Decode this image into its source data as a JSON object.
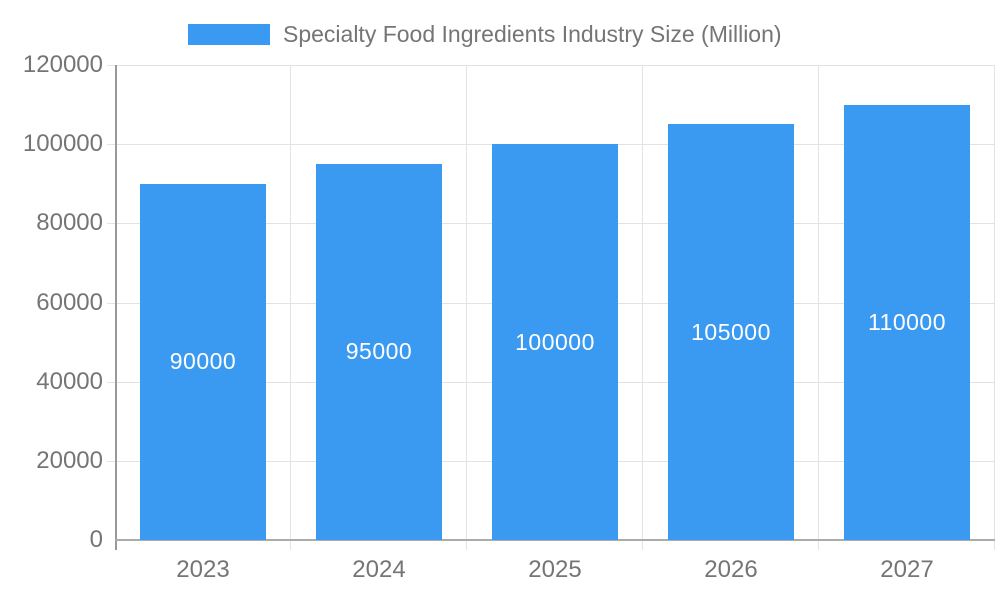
{
  "legend": {
    "label": "Specialty Food Ingredients Industry Size (Million)"
  },
  "chart_data": {
    "type": "bar",
    "title": "Specialty Food Ingredients Industry Size (Million)",
    "categories": [
      "2023",
      "2024",
      "2025",
      "2026",
      "2027"
    ],
    "values": [
      90000,
      95000,
      100000,
      105000,
      110000
    ],
    "bar_labels": [
      "90000",
      "95000",
      "100000",
      "105000",
      "110000"
    ],
    "xlabel": "",
    "ylabel": "",
    "ylim": [
      0,
      120000
    ],
    "yticks": [
      0,
      20000,
      40000,
      60000,
      80000,
      100000,
      120000
    ],
    "ytick_labels": [
      "0",
      "20000",
      "40000",
      "60000",
      "80000",
      "100000",
      "120000"
    ],
    "grid": true,
    "legend_position": "top",
    "colors": {
      "bar": "#3A99F0",
      "bar_label_text": "#ffffff",
      "axis_text": "#757575",
      "gridline": "#e3e3e3",
      "y_axis_line": "#999999",
      "x_axis_line": "#ababab",
      "background": "#ffffff"
    }
  }
}
